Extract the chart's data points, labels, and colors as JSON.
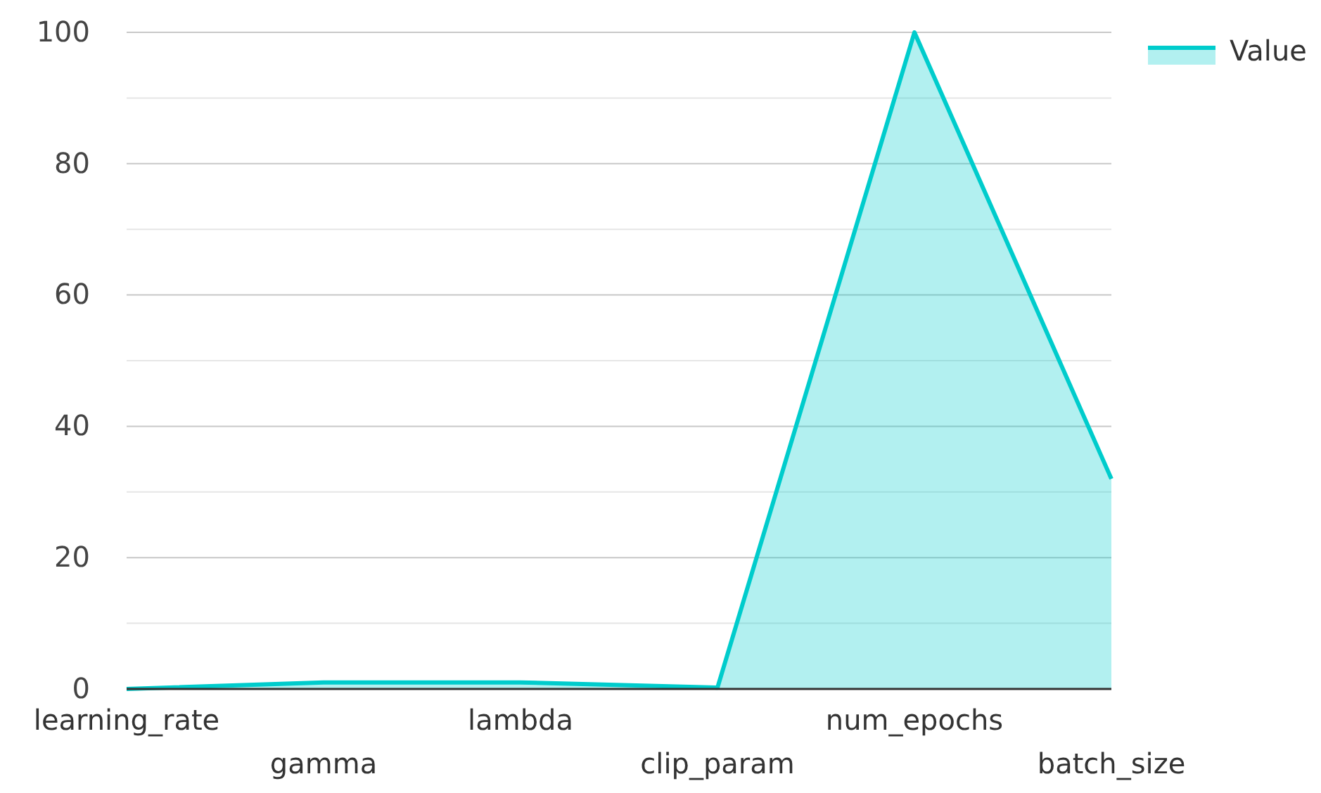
{
  "chart_data": {
    "type": "area",
    "categories": [
      "learning_rate",
      "gamma",
      "lambda",
      "clip_param",
      "num_epochs",
      "batch_size"
    ],
    "series": [
      {
        "name": "Value",
        "color": "#00cccc",
        "values": [
          0,
          1,
          1,
          0.2,
          100,
          32
        ]
      }
    ],
    "ylim": [
      0,
      100
    ],
    "yticks": [
      0,
      {
        "value": 10,
        "label": null
      },
      20,
      {
        "value": 30,
        "label": null
      },
      40,
      {
        "value": 50,
        "label": null
      },
      60,
      {
        "value": 70,
        "label": null
      },
      80,
      {
        "value": 90,
        "label": null
      },
      100
    ],
    "grid": "y",
    "legend": "top right"
  }
}
